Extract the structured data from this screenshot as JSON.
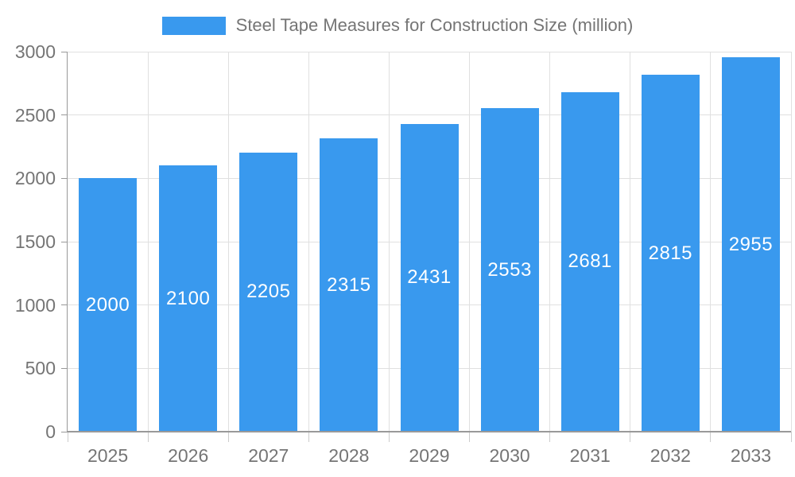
{
  "chart_data": {
    "type": "bar",
    "title": "Steel Tape Measures for Construction Size (million)",
    "legend": {
      "label": "Steel Tape Measures for Construction Size (million)",
      "position": "top-center"
    },
    "categories": [
      "2025",
      "2026",
      "2027",
      "2028",
      "2029",
      "2030",
      "2031",
      "2032",
      "2033"
    ],
    "series": [
      {
        "name": "Steel Tape Measures for Construction Size (million)",
        "values": [
          2000,
          2100,
          2205,
          2315,
          2431,
          2553,
          2681,
          2815,
          2955
        ]
      }
    ],
    "bar_value_labels_visible": true,
    "xlabel": "",
    "ylabel": "",
    "ylim": [
      0,
      3000
    ],
    "y_ticks": [
      0,
      500,
      1000,
      1500,
      2000,
      2500,
      3000
    ],
    "grid": true
  },
  "colors": {
    "bar": "#3999ee",
    "bar_label": "#ffffff",
    "axis_text": "#757575",
    "legend_text": "#757575",
    "grid_line": "#e0e0e0",
    "axis_line": "#999999",
    "minor_tick": "#cccccc",
    "background": "#ffffff"
  }
}
